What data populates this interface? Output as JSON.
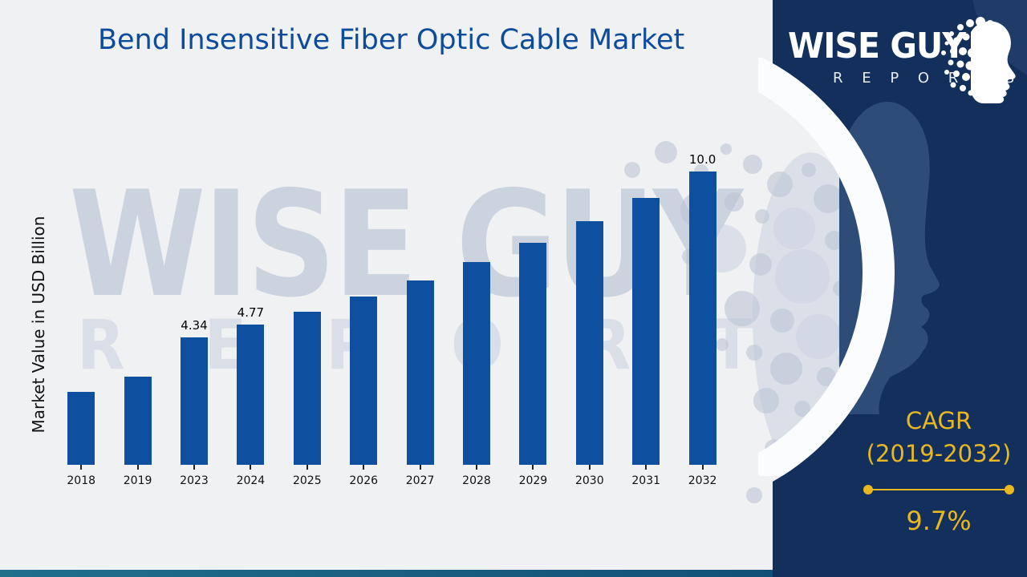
{
  "title": {
    "text": "Bend Insensitive Fiber Optic Cable Market"
  },
  "chart_data": {
    "type": "bar",
    "title": "Bend Insensitive Fiber Optic Cable Market",
    "categories": [
      "2018",
      "2019",
      "2023",
      "2024",
      "2025",
      "2026",
      "2027",
      "2028",
      "2029",
      "2030",
      "2031",
      "2032"
    ],
    "values": [
      2.5,
      3.0,
      4.34,
      4.77,
      5.23,
      5.74,
      6.29,
      6.9,
      7.57,
      8.31,
      9.11,
      10.0
    ],
    "data_labels": {
      "2023": "4.34",
      "2024": "4.77",
      "2032": "10.0"
    },
    "xlabel": "",
    "ylabel": "Market Value in USD Billion",
    "ylim": [
      0,
      10.5
    ],
    "grid": false,
    "legend": false,
    "bar_color": "#0e4f9f"
  },
  "watermark": {
    "line1": "WISE GUY",
    "line2": "R E P O R T S"
  },
  "brand_panel": {
    "logo_line1": "WISE GUY",
    "logo_line2": "R E P O R T S",
    "cagr_label": "CAGR",
    "cagr_range": "(2019-2032)",
    "cagr_value": "9.7%"
  },
  "colors": {
    "background": "#f0f1f2",
    "title_blue": "#0d4b9b",
    "bar_blue": "#0e4f9f",
    "panel_navy": "#132f5c",
    "corner_navy": "#1f3c69",
    "face_navy": "#2e4c78",
    "rim_white": "#fbfcfd",
    "gold": "#e8b722",
    "teal_left": "#20708a",
    "teal_right": "#124f78",
    "watermark_gray": "#b4c0d4"
  }
}
